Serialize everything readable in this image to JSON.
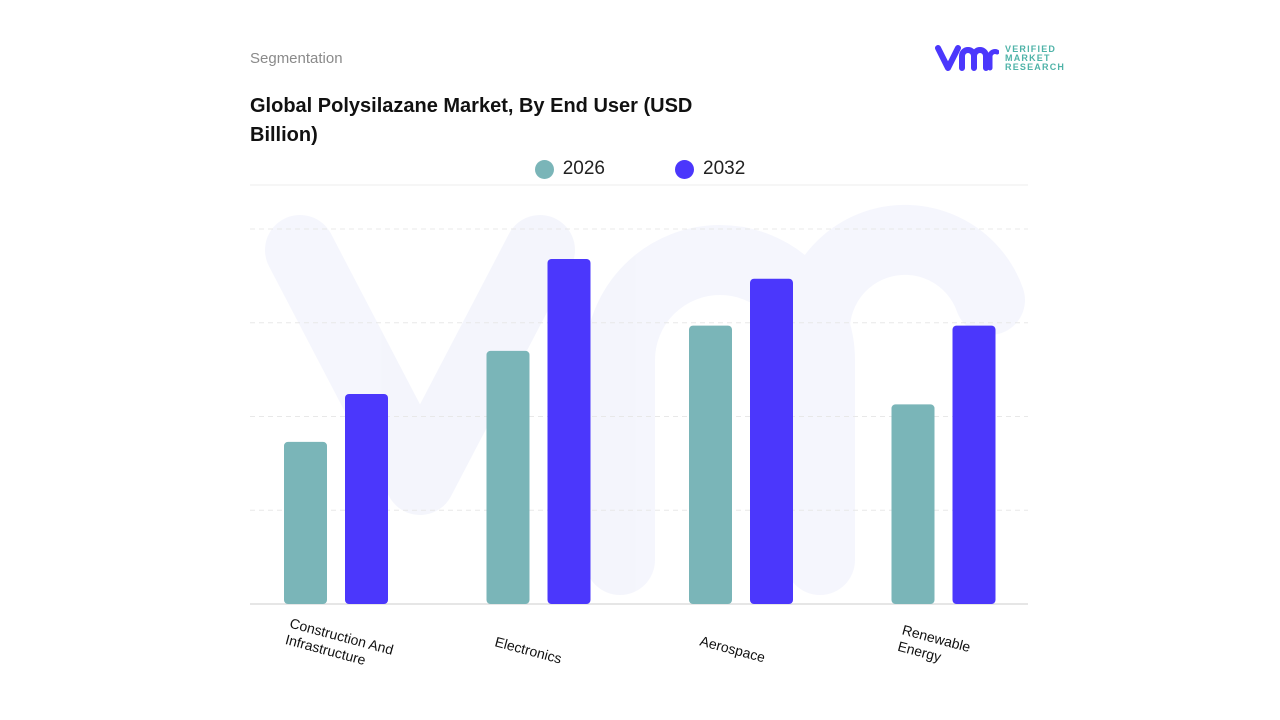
{
  "header": {
    "segment_label": "Segmentation",
    "title": "Global Polysilazane Market, By End User (USD Billion)",
    "logo_text": [
      "VERIFIED",
      "MARKET",
      "RESEARCH"
    ]
  },
  "chart_data": {
    "type": "bar",
    "title": "Global Polysilazane Market, By End User (USD Billion)",
    "categories": [
      "Construction And Infrastructure",
      "Electronics",
      "Aerospace",
      "Renewable Energy"
    ],
    "series": [
      {
        "name": "2026",
        "color": "#7ab5b8",
        "values": [
          1.73,
          2.7,
          2.97,
          2.13
        ]
      },
      {
        "name": "2032",
        "color": "#4b37fc",
        "values": [
          2.24,
          3.68,
          3.47,
          2.97
        ]
      }
    ],
    "ylim": [
      0,
      4
    ],
    "grid": true,
    "legend_position": "top-center",
    "y_tick_labels_shown": false
  }
}
